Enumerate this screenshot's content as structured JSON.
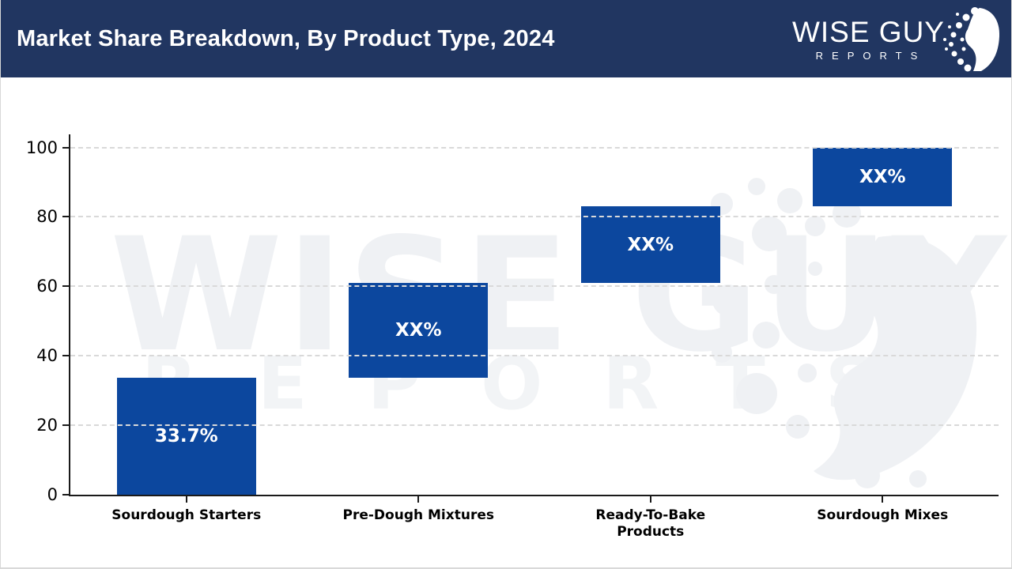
{
  "header": {
    "title": "Market Share Breakdown, By Product Type, 2024",
    "logo": {
      "line1": "WISE GUY",
      "line2": "REPORTS"
    }
  },
  "watermark": {
    "line1": "WISE GUY",
    "line2": "REPORTS"
  },
  "chart_data": {
    "type": "bar",
    "subtype": "waterfall",
    "title": "Market Share Breakdown, By Product Type, 2024",
    "categories": [
      "Sourdough Starters",
      "Pre-Dough Mixtures",
      "Ready-To-Bake Products",
      "Sourdough Mixes"
    ],
    "segments": [
      {
        "category": "Sourdough Starters",
        "start": 0,
        "end": 33.7,
        "label": "33.7%"
      },
      {
        "category": "Pre-Dough Mixtures",
        "start": 33.7,
        "end": 61,
        "label": "XX%"
      },
      {
        "category": "Ready-To-Bake Products",
        "start": 61,
        "end": 83,
        "label": "XX%"
      },
      {
        "category": "Sourdough Mixes",
        "start": 83,
        "end": 100,
        "label": "XX%"
      }
    ],
    "y_ticks": [
      0,
      20,
      40,
      60,
      80,
      100
    ],
    "ylim": [
      0,
      103.7
    ],
    "xlabel": "",
    "ylabel": "",
    "grid": "horizontal-dashed",
    "legend": "none",
    "bar_color": "#0c479e",
    "bar_label_color": "#ffffff"
  },
  "colors": {
    "header_bg": "#213661",
    "bar": "#0c479e",
    "gridline": "#d9d9d9",
    "axis": "#1a1a1a",
    "watermark": "#eff1f4"
  }
}
